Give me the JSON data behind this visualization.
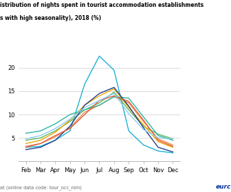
{
  "title_line1": "istribution of nights spent in tourist accommodation establishments",
  "title_line2": "s with high seasonality), 2018 (%)",
  "months": [
    "Feb",
    "Mar",
    "Apr",
    "May",
    "Jun",
    "Jul",
    "Aug",
    "Sep",
    "Oct",
    "Nov",
    "Dec"
  ],
  "series": [
    {
      "color": "#f28b50",
      "values": [
        3.2,
        3.8,
        5.2,
        7.2,
        10.5,
        12.0,
        13.8,
        12.5,
        8.5,
        4.8,
        3.5
      ]
    },
    {
      "color": "#1ab0d4",
      "values": [
        3.0,
        3.2,
        4.5,
        6.5,
        16.5,
        22.5,
        19.5,
        6.5,
        3.5,
        2.2,
        1.8
      ]
    },
    {
      "color": "#5cb85c",
      "values": [
        4.5,
        5.0,
        6.5,
        8.5,
        11.0,
        12.5,
        14.8,
        11.0,
        7.5,
        5.8,
        4.8
      ]
    },
    {
      "color": "#f0a500",
      "values": [
        3.8,
        4.5,
        6.2,
        8.8,
        12.0,
        14.0,
        15.5,
        11.5,
        7.8,
        4.2,
        3.0
      ]
    },
    {
      "color": "#2ab5a0",
      "values": [
        6.0,
        6.5,
        8.0,
        10.0,
        11.0,
        12.0,
        13.8,
        13.5,
        9.5,
        5.5,
        4.5
      ]
    },
    {
      "color": "#1f3e8c",
      "values": [
        2.5,
        3.0,
        4.5,
        7.5,
        12.0,
        14.5,
        15.8,
        11.8,
        7.2,
        3.0,
        2.0
      ]
    },
    {
      "color": "#e05a3a",
      "values": [
        3.0,
        3.8,
        5.5,
        7.0,
        10.0,
        13.0,
        14.0,
        12.8,
        8.8,
        4.5,
        3.2
      ]
    },
    {
      "color": "#87cef5",
      "values": [
        4.8,
        5.5,
        7.0,
        9.0,
        11.5,
        13.0,
        14.5,
        10.2,
        6.8,
        5.0,
        4.8
      ]
    }
  ],
  "ylim": [
    0,
    23
  ],
  "ytick_positions": [
    5,
    10,
    15,
    20
  ],
  "footer": "at (online data code: tour_occ_nim)",
  "source_label": "eurc",
  "background_color": "#ffffff",
  "grid_color": "#d5d5d5"
}
